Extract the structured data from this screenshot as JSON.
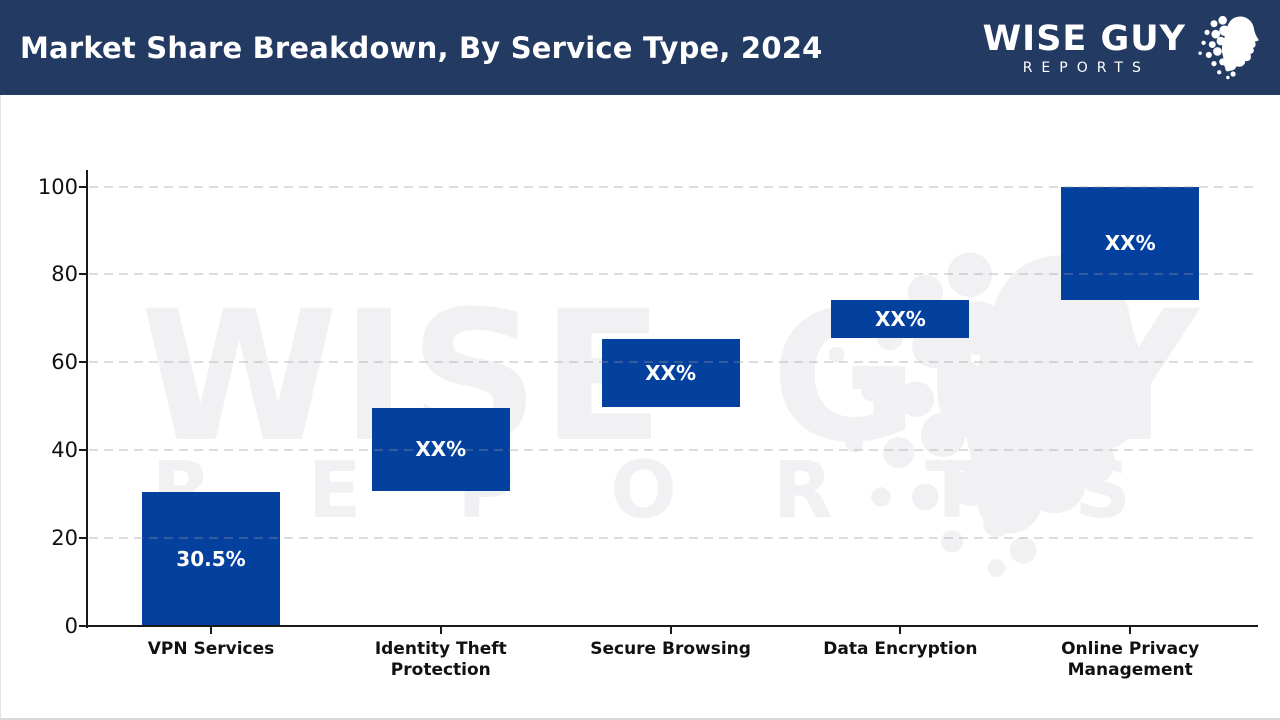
{
  "header": {
    "title": "Market Share Breakdown, By Service Type, 2024",
    "bg_color": "#233a62",
    "logo": {
      "line1": "WISE GUY",
      "line2": "REPORTS"
    }
  },
  "watermark": {
    "line1": "WISE GUY",
    "line2": "REPORTS",
    "color": "#f1f1f4"
  },
  "chart_data": {
    "type": "bar",
    "variant": "floating-waterfall",
    "title": "Market Share Breakdown, By Service Type, 2024",
    "categories": [
      "VPN Services",
      "Identity Theft Protection",
      "Secure Browsing",
      "Data Encryption",
      "Online Privacy Management"
    ],
    "category_lines": [
      [
        "VPN Services"
      ],
      [
        "Identity Theft",
        "Protection"
      ],
      [
        "Secure Browsing"
      ],
      [
        "Data Encryption"
      ],
      [
        "Online Privacy",
        "Management"
      ]
    ],
    "segments": [
      {
        "category": "VPN Services",
        "start": 0,
        "end": 30.5,
        "label": "30.5%"
      },
      {
        "category": "Identity Theft Protection",
        "start": 30.6,
        "end": 49.6,
        "label": "XX%"
      },
      {
        "category": "Secure Browsing",
        "start": 49.7,
        "end": 65.3,
        "label": "XX%"
      },
      {
        "category": "Data Encryption",
        "start": 65.5,
        "end": 74.2,
        "label": "XX%"
      },
      {
        "category": "Online Privacy Management",
        "start": 74.2,
        "end": 100,
        "label": "XX%"
      }
    ],
    "xlabel": "",
    "ylabel": "",
    "ylim": [
      0,
      100
    ],
    "yticks": [
      0,
      20,
      40,
      60,
      80,
      100
    ],
    "grid": "horizontal dashed, drawn over bars",
    "legend": "none",
    "bar_color": "#04419e",
    "note": "All segment values except VPN Services are masked as XX% in the image"
  }
}
